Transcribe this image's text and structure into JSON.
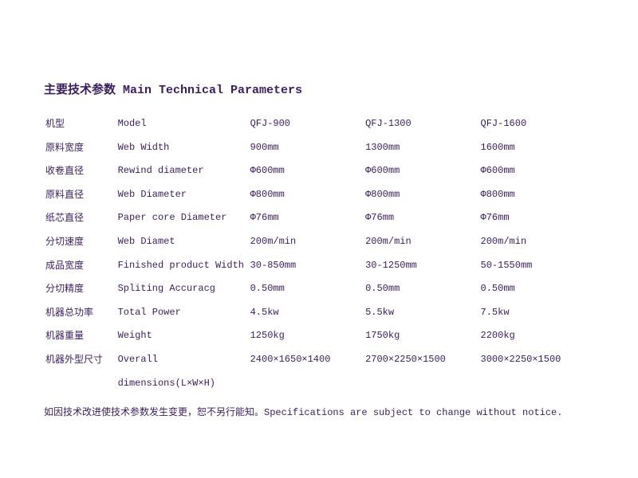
{
  "title": "主要技术参数 Main Technical Parameters",
  "columns_cn": [
    "机型",
    "原料宽度",
    "收卷直径",
    "原料直径",
    "纸芯直径",
    "分切速度",
    "成品宽度",
    "分切精度",
    "机器总功率",
    "机器重量",
    "机器外型尺寸"
  ],
  "columns_en": [
    "Model",
    "Web Width",
    " Rewind diameter",
    "Web Diameter",
    "Paper core Diameter",
    "Web Diamet",
    "Finished product Width",
    "Spliting Accuracg",
    "Total Power",
    "Weight",
    "Overall"
  ],
  "en_line2": {
    "10": "dimensions(L×W×H)"
  },
  "models": [
    "QFJ-900",
    "QFJ-1300",
    "QFJ-1600"
  ],
  "rows": [
    [
      "900mm",
      "1300mm",
      "1600mm"
    ],
    [
      "Φ600mm",
      "Φ600mm",
      "Φ600mm"
    ],
    [
      "Φ800mm",
      "Φ800mm",
      "Φ800mm"
    ],
    [
      "Φ76mm",
      "Φ76mm",
      "Φ76mm"
    ],
    [
      "200m/min",
      "200m/min",
      "200m/min"
    ],
    [
      "30-850mm",
      "30-1250mm",
      "50-1550mm"
    ],
    [
      "0.50mm",
      "0.50mm",
      "0.50mm"
    ],
    [
      "4.5kw",
      "5.5kw",
      "7.5kw"
    ],
    [
      "1250kg",
      "1750kg",
      "2200kg"
    ],
    [
      "2400×1650×1400",
      "2700×2250×1500",
      "3000×2250×1500"
    ]
  ],
  "footnote": "如因技术改进使技术参数发生变更，恕不另行能知。Specifications are subject to change without notice.",
  "styling": {
    "text_color": "#3a1e5c",
    "rewind_color": "#8a8a8a",
    "background": "#ffffff",
    "title_fontsize": 15,
    "body_fontsize": 12,
    "font_family": "SimSun / Courier New monospace"
  }
}
